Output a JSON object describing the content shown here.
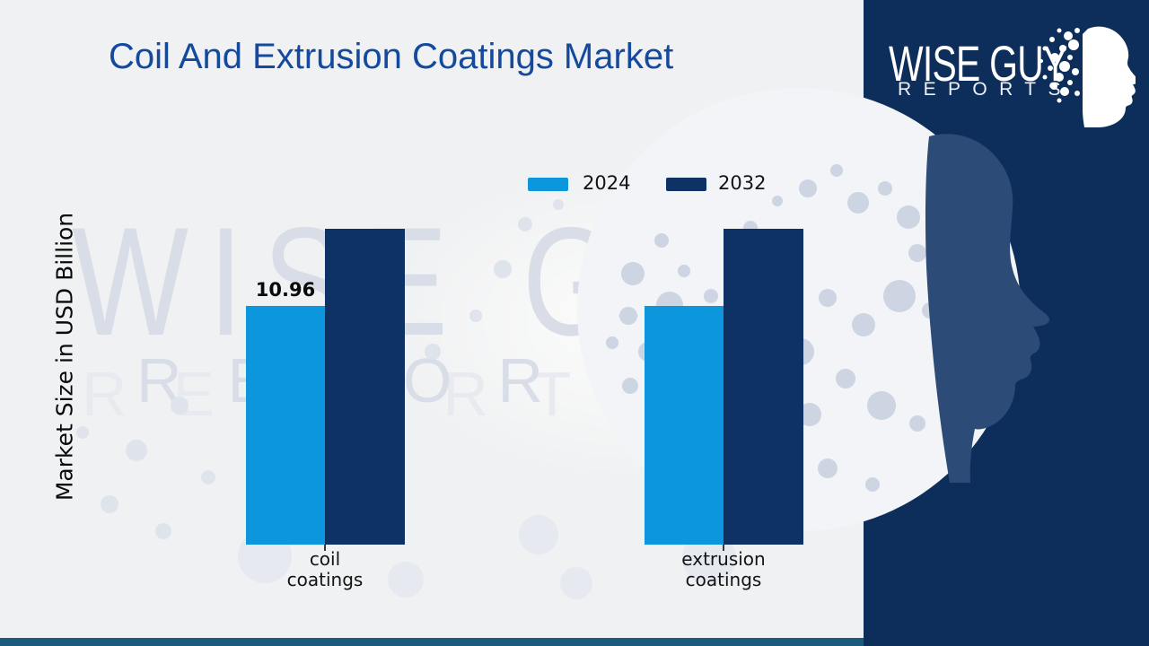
{
  "page": {
    "background_color": "#f0f1f2",
    "footer_bar_color": "#1a5a7e"
  },
  "title": {
    "text": "Coil And Extrusion Coatings Market",
    "color": "#14499d"
  },
  "branding": {
    "panel_color": "#0d2d5b",
    "name": "WISE GUY",
    "sub_name": "REPORTS"
  },
  "watermark": {
    "line1": "WISE GUY",
    "line2": "REPORTS"
  },
  "chart_data": {
    "type": "bar",
    "title": "Coil And Extrusion Coatings Market",
    "xlabel": "",
    "ylabel": "Market Size in USD Billion",
    "categories": [
      "coil coatings",
      "extrusion coatings"
    ],
    "series": [
      {
        "name": "2024",
        "color": "#0c96dc",
        "values": [
          10.96,
          10.96
        ]
      },
      {
        "name": "2032",
        "color": "#0e3263",
        "values": [
          14.5,
          14.5
        ]
      }
    ],
    "value_labels": [
      {
        "series": "2024",
        "category": "coil coatings",
        "text": "10.96"
      }
    ],
    "legend_position": "top-center",
    "grid": false,
    "y_axis_ticks_visible": false,
    "ylim": [
      0,
      16
    ]
  }
}
